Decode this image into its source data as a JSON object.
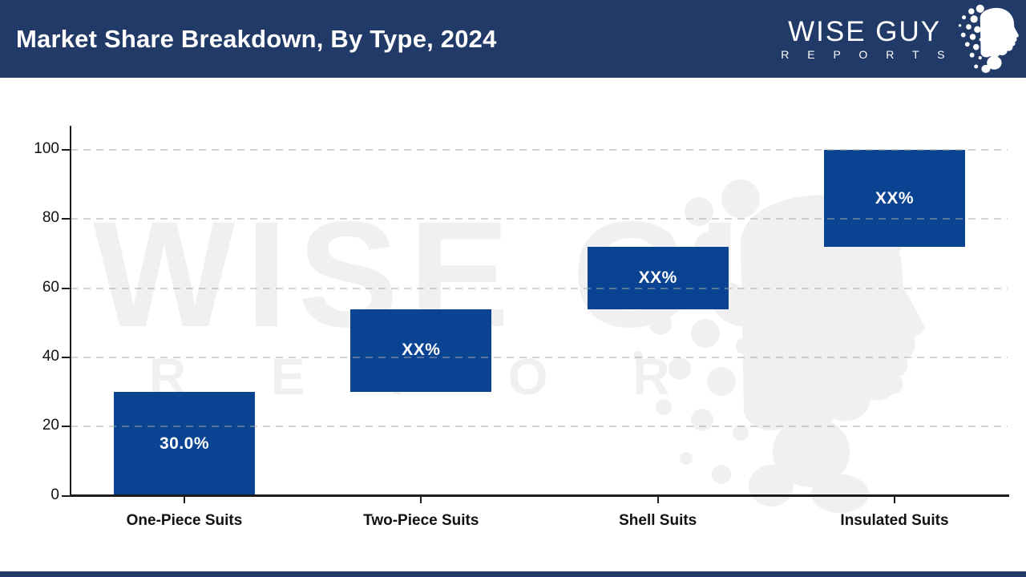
{
  "header": {
    "title": "Market Share Breakdown, By Type, 2024",
    "logo": {
      "wordmark": "WISE GUY",
      "subtext": "R E P O R T S"
    }
  },
  "watermark": {
    "wordmark": "WISE GUY",
    "subtext": "R E P O R T S"
  },
  "colors": {
    "header_bar": "#213a67",
    "footer_bar": "#213a67",
    "bar_blue": "#0a4392",
    "watermark_gray": "#f0f0f2",
    "axis": "#1c1c1c"
  },
  "chart_data": {
    "type": "bar",
    "subtype": "floating-waterfall",
    "title": "Market Share Breakdown, By Type, 2024",
    "xlabel": "",
    "ylabel": "",
    "ylim": [
      0,
      107
    ],
    "yticks": [
      0,
      20,
      40,
      60,
      80,
      100
    ],
    "grid": "horizontal-dashed",
    "legend": "none",
    "categories": [
      "One-Piece Suits",
      "Two-Piece Suits",
      "Shell Suits",
      "Insulated Suits"
    ],
    "bars": [
      {
        "category": "One-Piece Suits",
        "start": 0,
        "end": 30,
        "label": "30.0%"
      },
      {
        "category": "Two-Piece Suits",
        "start": 30,
        "end": 54,
        "label": "XX%"
      },
      {
        "category": "Shell Suits",
        "start": 54,
        "end": 72,
        "label": "XX%"
      },
      {
        "category": "Insulated Suits",
        "start": 72,
        "end": 100,
        "label": "XX%"
      }
    ]
  }
}
